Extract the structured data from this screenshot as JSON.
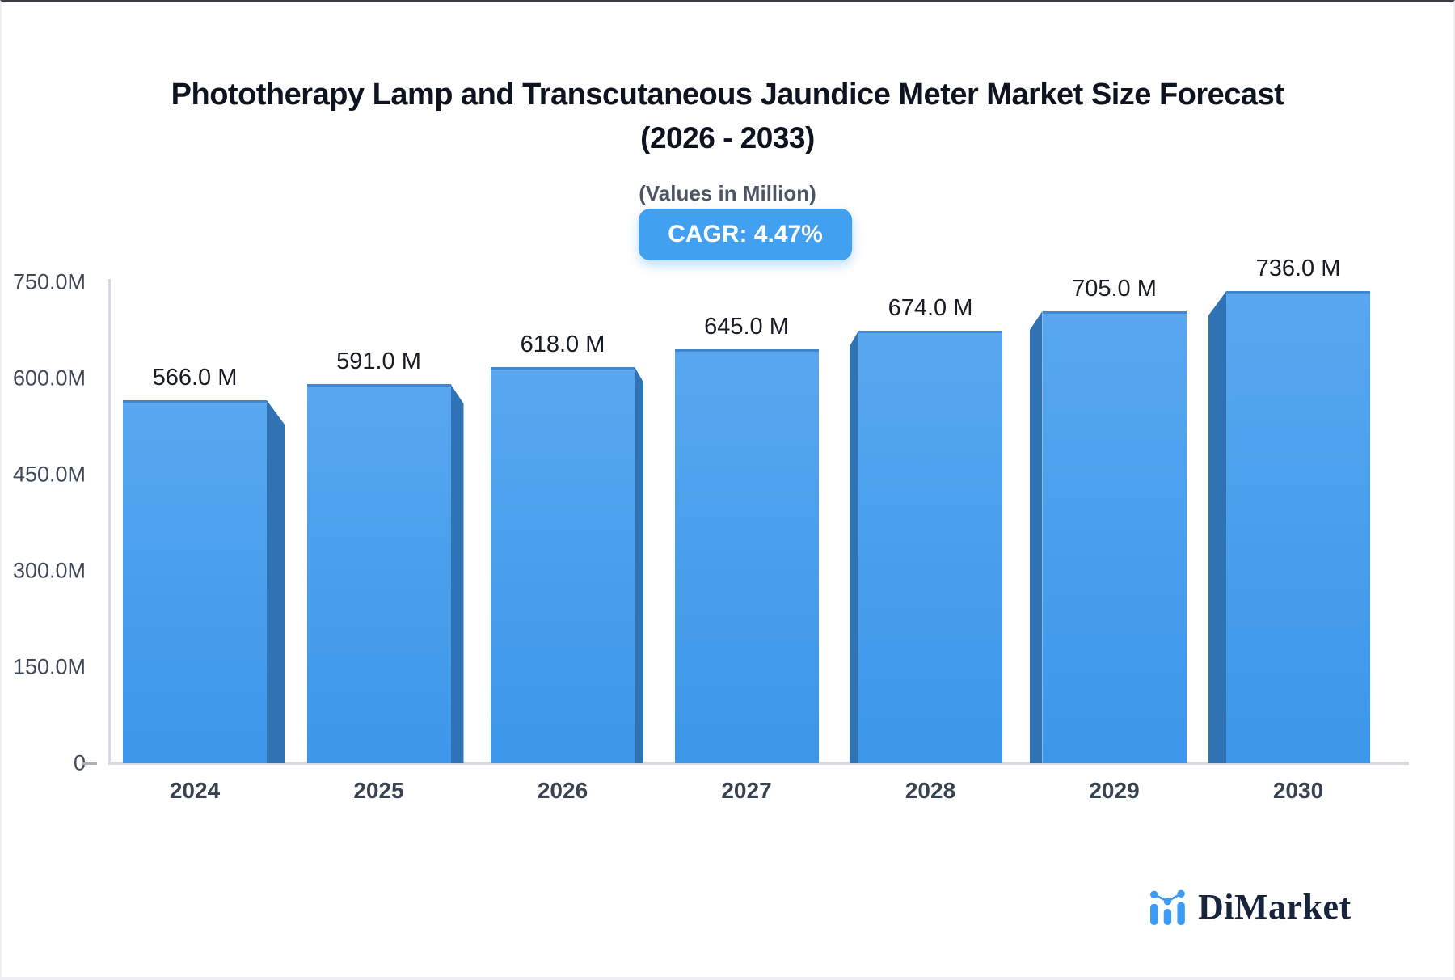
{
  "header": {
    "title_line1": "Phototherapy Lamp and Transcutaneous Jaundice Meter Market Size Forecast",
    "title_line2": "(2026 - 2033)",
    "subtitle": "(Values in Million)",
    "cagr_label": "CAGR: 4.47%"
  },
  "chart_data": {
    "type": "bar",
    "title": "Phototherapy Lamp and Transcutaneous Jaundice Meter Market Size Forecast (2026 - 2033)",
    "subtitle": "(Values in Million)",
    "cagr_percent": "4.47%",
    "categories": [
      "2024",
      "2025",
      "2026",
      "2027",
      "2028",
      "2029",
      "2030"
    ],
    "values": [
      566,
      591,
      618,
      645,
      674,
      705,
      736
    ],
    "value_labels": [
      "566.0 M",
      "591.0 M",
      "618.0 M",
      "645.0 M",
      "674.0 M",
      "705.0 M",
      "736.0 M"
    ],
    "xlabel": "",
    "ylabel": "",
    "ylim": [
      0,
      750
    ],
    "y_ticks": [
      {
        "label": "750.0M",
        "value": 750
      },
      {
        "label": "600.0M",
        "value": 600
      },
      {
        "label": "450.0M",
        "value": 450
      },
      {
        "label": "300.0M",
        "value": 300
      },
      {
        "label": "150.0M",
        "value": 150
      },
      {
        "label": "0",
        "value": 0
      }
    ],
    "grid": false,
    "legend": false,
    "style": "3d-perspective-bars",
    "colors": {
      "bar_face_top": "#58a7ef",
      "bar_face_bottom": "#3c96ea",
      "bar_side": "#2f73b5",
      "axis_line": "#d7dade",
      "tick_text": "#3e4857",
      "value_text": "#161b26",
      "badge_bg": "#42a0f1",
      "badge_text": "#ffffff"
    }
  },
  "branding": {
    "logo_text": "DiMarket",
    "logo_icon": "bar-chart-icon",
    "logo_accent": "#3d9bf5",
    "logo_text_color": "#18243c"
  }
}
